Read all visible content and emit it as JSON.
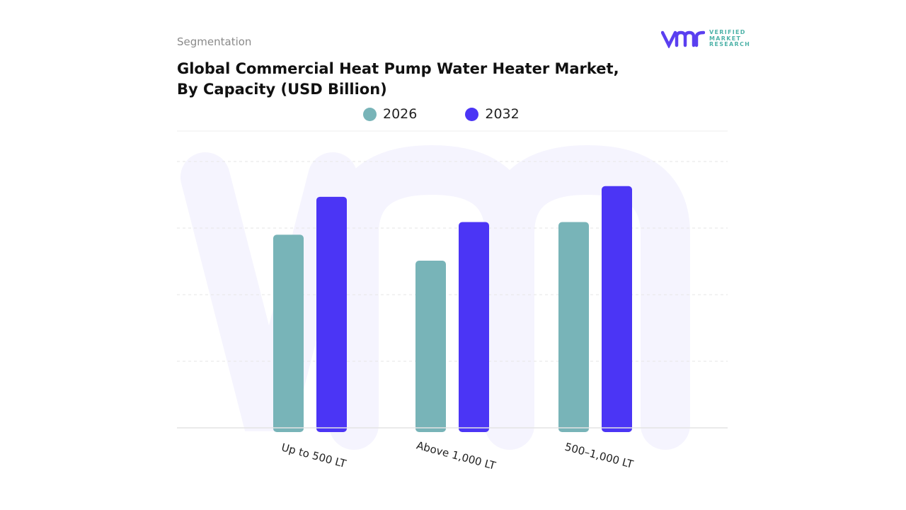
{
  "header": {
    "section": "Segmentation",
    "title_line1": "Global Commercial Heat Pump Water Heater Market,",
    "title_line2": "By Capacity (USD Billion)"
  },
  "logo": {
    "line1": "VERIFIED",
    "line2": "MARKET",
    "line3": "RESEARCH",
    "mark": "vmr"
  },
  "colors": {
    "2026": "#78b4b8",
    "2032": "#4b35f5",
    "brand_purple": "#5a3ff0",
    "brand_teal": "#4fb3a9"
  },
  "chart_data": {
    "type": "bar",
    "title": "Global Commercial Heat Pump Water Heater Market, By Capacity (USD Billion)",
    "categories": [
      "Up to 500 LT",
      "Above 1,000 LT",
      "500–1,000 LT"
    ],
    "series": [
      {
        "name": "2026",
        "values": [
          2.9,
          2.51,
          3.09
        ]
      },
      {
        "name": "2032",
        "values": [
          3.47,
          3.09,
          3.63
        ]
      }
    ],
    "ylim": [
      0,
      4
    ],
    "grid": true,
    "legend": "top",
    "xlabel": "",
    "ylabel": ""
  }
}
